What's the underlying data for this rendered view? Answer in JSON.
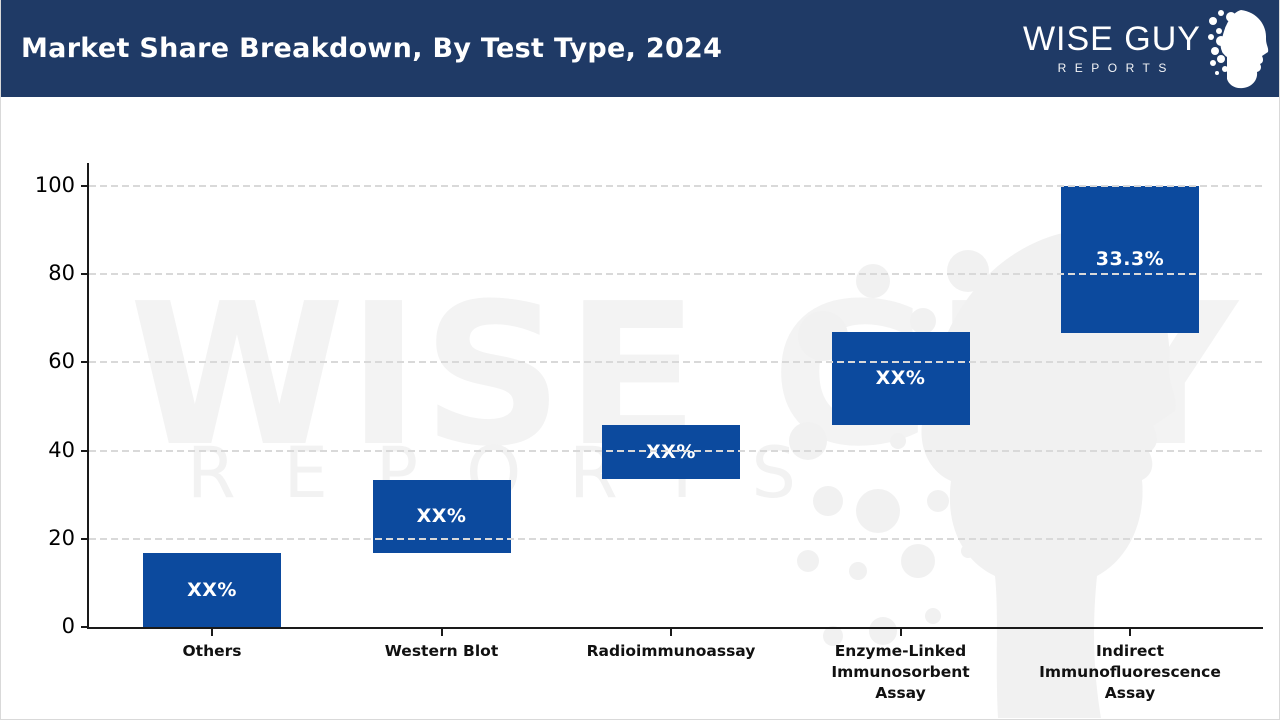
{
  "header": {
    "title": "Market Share Breakdown, By Test Type, 2024",
    "logo": {
      "brand": "WISE GUY",
      "sub": "REPORTS"
    },
    "colors": {
      "bg": "#1F3A66",
      "text": "#FFFFFF"
    }
  },
  "watermark": {
    "brand": "WISE GUY",
    "sub": "REPORTS"
  },
  "chart_data": {
    "type": "bar",
    "variant": "floating-segment-waterfall",
    "title": "Market Share Breakdown, By Test Type, 2024",
    "xlabel": "",
    "ylabel": "",
    "ylim": [
      0,
      100
    ],
    "yticks": [
      0,
      20,
      40,
      60,
      80,
      100
    ],
    "grid": "horizontal-dashed",
    "legend": "none",
    "bar_color": "#0C4A9E",
    "bar_label_color": "#FFFFFF",
    "gridline_color": "#D9D9D9",
    "axis_color": "#1A1A1A",
    "categories": [
      "Others",
      "Western Blot",
      "Radioimmunoassay",
      "Enzyme-Linked Immunosorbent Assay",
      "Indirect Immunofluorescence Assay"
    ],
    "tick_labels": [
      "Others",
      "Western Blot",
      "Radioimmunoassay",
      "Enzyme-Linked\nImmunosorbent\nAssay",
      "Indirect\nImmunofluorescence\nAssay"
    ],
    "segments": [
      {
        "category": "Others",
        "bottom": 0,
        "top": 16.8,
        "label": "XX%"
      },
      {
        "category": "Western Blot",
        "bottom": 16.8,
        "top": 33.4,
        "label": "XX%"
      },
      {
        "category": "Radioimmunoassay",
        "bottom": 33.6,
        "top": 45.9,
        "label": "XX%"
      },
      {
        "category": "Enzyme-Linked Immunosorbent Assay",
        "bottom": 45.9,
        "top": 66.8,
        "label": "XX%"
      },
      {
        "category": "Indirect Immunofluorescence Assay",
        "bottom": 66.7,
        "top": 100,
        "label": "33.3%"
      }
    ]
  }
}
